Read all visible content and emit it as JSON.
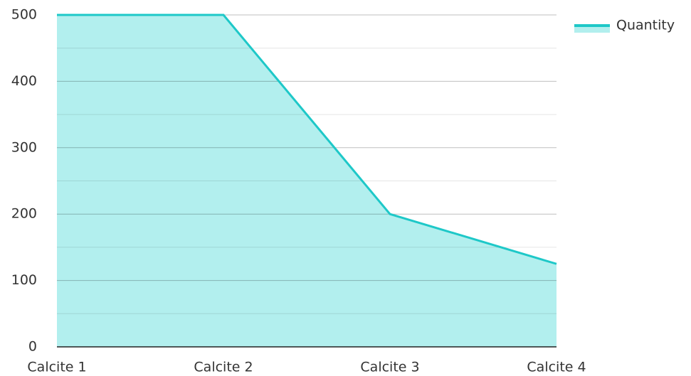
{
  "chart_data": {
    "type": "area",
    "categories": [
      "Calcite 1",
      "Calcite 2",
      "Calcite 3",
      "Calcite 4"
    ],
    "series": [
      {
        "name": "Quantity",
        "color": "#1ec8c8",
        "fill": "#b2efee",
        "values": [
          500,
          500,
          200,
          125
        ]
      }
    ],
    "ylim": [
      0,
      500
    ],
    "yticks": [
      0,
      100,
      200,
      300,
      400,
      500
    ],
    "minor_yticks": [
      50,
      150,
      250,
      350,
      450
    ],
    "grid": true,
    "legend": "top-right"
  }
}
